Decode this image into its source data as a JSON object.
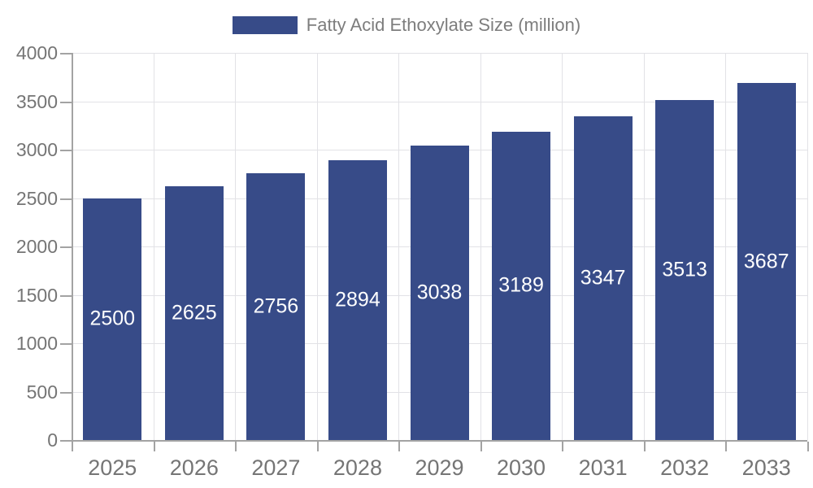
{
  "chart_data": {
    "type": "bar",
    "title": "Fatty Acid Ethoxylate Size (million)",
    "categories": [
      "2025",
      "2026",
      "2027",
      "2028",
      "2029",
      "2030",
      "2031",
      "2032",
      "2033"
    ],
    "values": [
      2500,
      2625,
      2756,
      2894,
      3038,
      3189,
      3347,
      3513,
      3687
    ],
    "xlabel": "",
    "ylabel": "",
    "ylim": [
      0,
      4000
    ],
    "ytick_step": 500,
    "ytick_labels": [
      "0",
      "500",
      "1000",
      "1500",
      "2000",
      "2500",
      "3000",
      "3500",
      "4000"
    ],
    "grid": true,
    "legend_position": "top",
    "bar_labels_visible": true
  },
  "colors": {
    "bar": "#374b88",
    "bar_label": "#ffffff",
    "grid": "#e2e2e6",
    "axis": "#a3a3a3",
    "tick_label": "#757575",
    "legend_text": "#7d7d7d",
    "background": "#ffffff"
  }
}
